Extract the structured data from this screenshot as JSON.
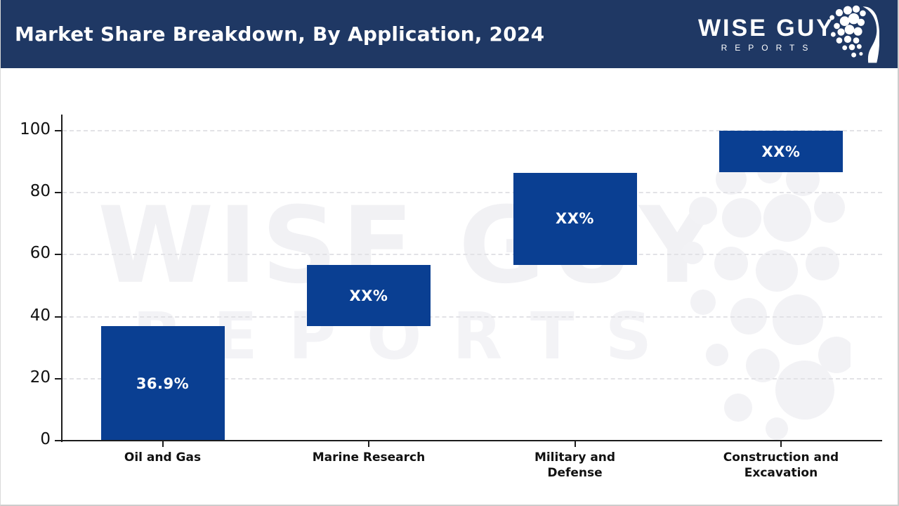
{
  "header": {
    "bg_color": "#1f3864",
    "title": "Market Share Breakdown, By Application, 2024",
    "logo": {
      "name": "Wise Guy Reports",
      "line1": "WISE GUY",
      "line2": "REPORTS"
    }
  },
  "watermark": {
    "line1": "WISE GUY",
    "line2": "REPORTS"
  },
  "chart_data": {
    "type": "bar",
    "subtype": "floating-waterfall",
    "title": "Market Share Breakdown, By Application, 2024",
    "categories": [
      "Oil and Gas",
      "Marine Research",
      "Military and Defense",
      "Construction and Excavation"
    ],
    "category_display": [
      "Oil and Gas",
      "Marine Research",
      "Military and\nDefense",
      "Construction and\nExcavation"
    ],
    "segments": [
      {
        "category": "Oil and Gas",
        "start": 0,
        "end": 36.9,
        "label": "36.9%"
      },
      {
        "category": "Marine Research",
        "start": 36.9,
        "end": 56.6,
        "label": "XX%"
      },
      {
        "category": "Military and Defense",
        "start": 56.8,
        "end": 86.3,
        "label": "XX%"
      },
      {
        "category": "Construction and Excavation",
        "start": 86.6,
        "end": 100,
        "label": "XX%"
      }
    ],
    "yticks": [
      0,
      20,
      40,
      60,
      80,
      100
    ],
    "ylim": [
      0,
      105
    ],
    "xlabel": "",
    "ylabel": "",
    "bar_color": "#0a3f92",
    "grid": "horizontal-dashed",
    "legend": "none"
  }
}
